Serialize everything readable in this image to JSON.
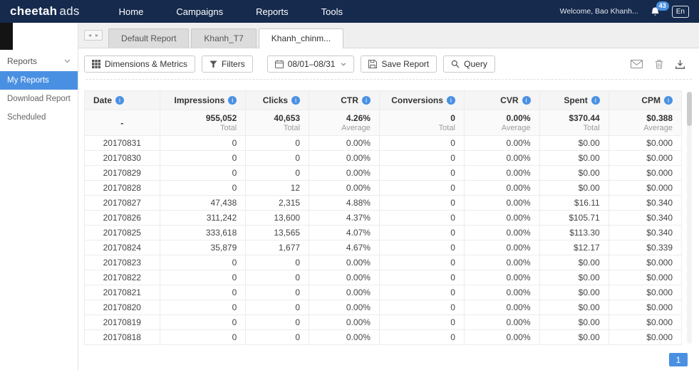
{
  "navbar": {
    "brand": {
      "bold": "cheetah",
      "light": "ads"
    },
    "items": [
      {
        "label": "Home"
      },
      {
        "label": "Campaigns"
      },
      {
        "label": "Reports"
      },
      {
        "label": "Tools"
      }
    ],
    "welcome": "Welcome,",
    "username": "Bao Khanh...",
    "notification_count": "43",
    "language": "En"
  },
  "sidebar": {
    "section_label": "Reports",
    "items": [
      {
        "label": "My Reports",
        "active": true
      },
      {
        "label": "Download Report",
        "active": false
      },
      {
        "label": "Scheduled",
        "active": false
      }
    ]
  },
  "tabs": {
    "items": [
      {
        "label": "Default Report",
        "active": false
      },
      {
        "label": "Khanh_T7",
        "active": false
      },
      {
        "label": "Khanh_chinm...",
        "active": true
      }
    ]
  },
  "toolbar": {
    "dimensions_metrics_label": "Dimensions & Metrics",
    "filters_label": "Filters",
    "date_range_label": "08/01–08/31",
    "save_report_label": "Save Report",
    "query_label": "Query"
  },
  "icons": {
    "info_glyph": "i",
    "prev_arrow": "◂",
    "next_arrow": "▸"
  },
  "table": {
    "columns": [
      "Date",
      "Impressions",
      "Clicks",
      "CTR",
      "Conversions",
      "CVR",
      "Spent",
      "CPM"
    ],
    "totals": [
      {
        "value": "-",
        "sub": ""
      },
      {
        "value": "955,052",
        "sub": "Total"
      },
      {
        "value": "40,653",
        "sub": "Total"
      },
      {
        "value": "4.26%",
        "sub": "Average"
      },
      {
        "value": "0",
        "sub": "Total"
      },
      {
        "value": "0.00%",
        "sub": "Average"
      },
      {
        "value": "$370.44",
        "sub": "Total"
      },
      {
        "value": "$0.388",
        "sub": "Average"
      }
    ],
    "rows": [
      [
        "20170831",
        "0",
        "0",
        "0.00%",
        "0",
        "0.00%",
        "$0.00",
        "$0.000"
      ],
      [
        "20170830",
        "0",
        "0",
        "0.00%",
        "0",
        "0.00%",
        "$0.00",
        "$0.000"
      ],
      [
        "20170829",
        "0",
        "0",
        "0.00%",
        "0",
        "0.00%",
        "$0.00",
        "$0.000"
      ],
      [
        "20170828",
        "0",
        "12",
        "0.00%",
        "0",
        "0.00%",
        "$0.00",
        "$0.000"
      ],
      [
        "20170827",
        "47,438",
        "2,315",
        "4.88%",
        "0",
        "0.00%",
        "$16.11",
        "$0.340"
      ],
      [
        "20170826",
        "311,242",
        "13,600",
        "4.37%",
        "0",
        "0.00%",
        "$105.71",
        "$0.340"
      ],
      [
        "20170825",
        "333,618",
        "13,565",
        "4.07%",
        "0",
        "0.00%",
        "$113.30",
        "$0.340"
      ],
      [
        "20170824",
        "35,879",
        "1,677",
        "4.67%",
        "0",
        "0.00%",
        "$12.17",
        "$0.339"
      ],
      [
        "20170823",
        "0",
        "0",
        "0.00%",
        "0",
        "0.00%",
        "$0.00",
        "$0.000"
      ],
      [
        "20170822",
        "0",
        "0",
        "0.00%",
        "0",
        "0.00%",
        "$0.00",
        "$0.000"
      ],
      [
        "20170821",
        "0",
        "0",
        "0.00%",
        "0",
        "0.00%",
        "$0.00",
        "$0.000"
      ],
      [
        "20170820",
        "0",
        "0",
        "0.00%",
        "0",
        "0.00%",
        "$0.00",
        "$0.000"
      ],
      [
        "20170819",
        "0",
        "0",
        "0.00%",
        "0",
        "0.00%",
        "$0.00",
        "$0.000"
      ],
      [
        "20170818",
        "0",
        "0",
        "0.00%",
        "0",
        "0.00%",
        "$0.00",
        "$0.000"
      ]
    ]
  },
  "pagination": {
    "current_page": "1"
  },
  "colors": {
    "accent": "#4a90e2",
    "navbar_bg": "#152a4d"
  }
}
